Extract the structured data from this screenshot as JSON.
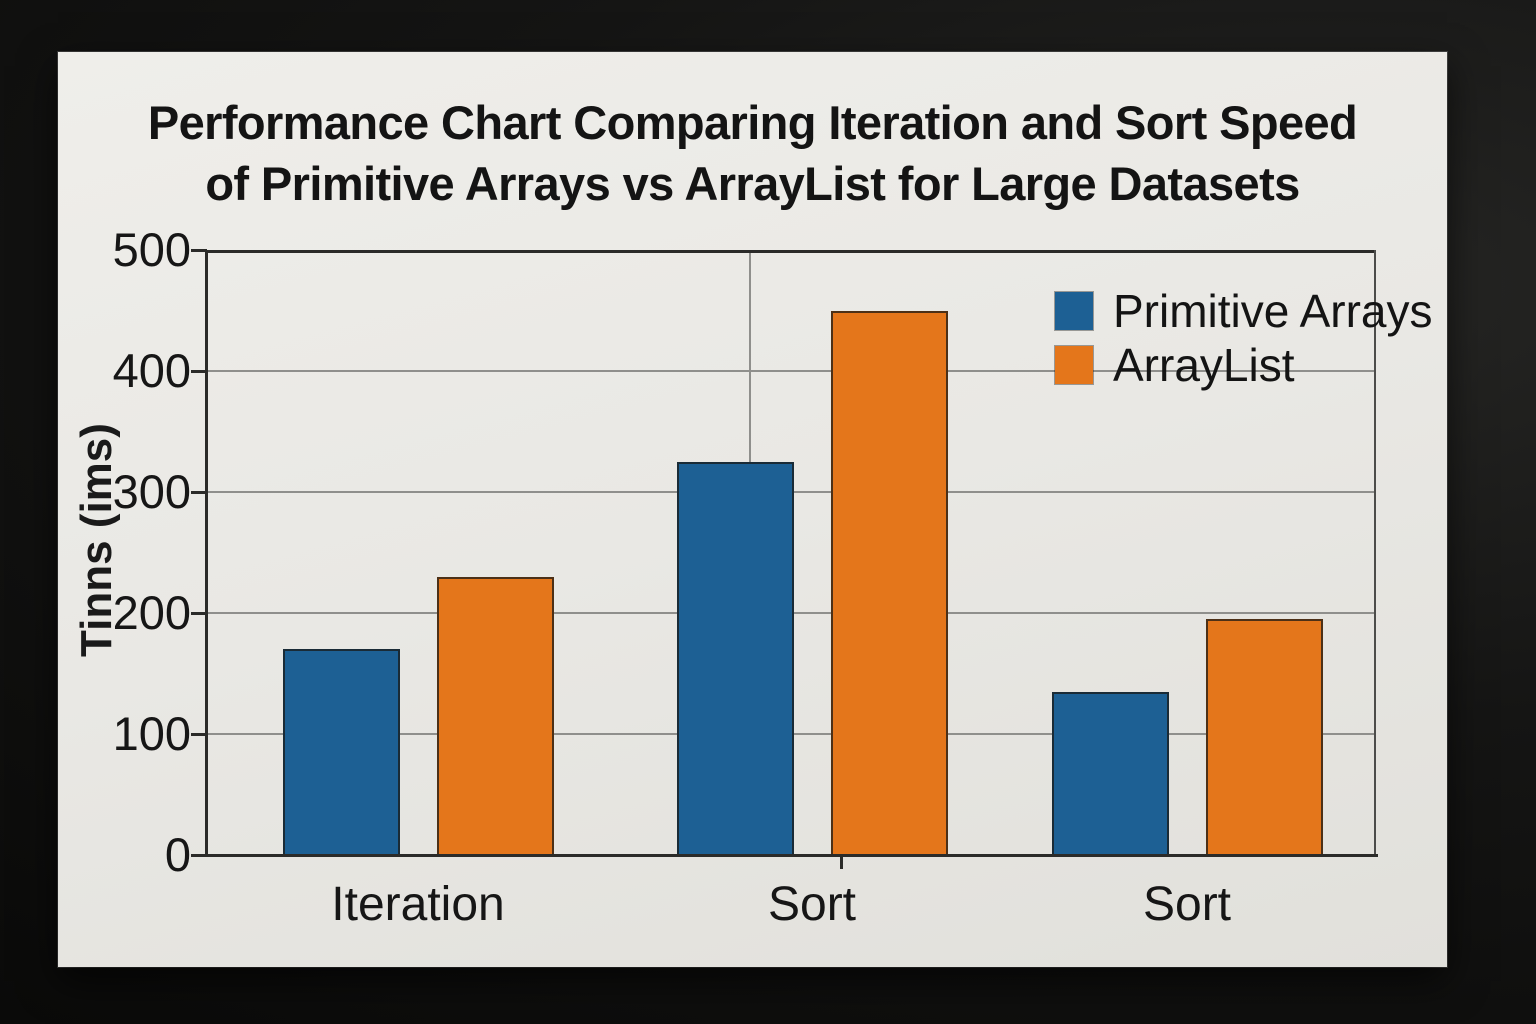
{
  "photo": {
    "background_color": "#101010",
    "card_color": "#e9e8e4"
  },
  "title": {
    "line1": "Performance Chart Comparing Iteration and Sort Speed",
    "line2": "of Primitive Arrays vs ArrayList for Large Datasets"
  },
  "chart_data": {
    "type": "bar",
    "title": "Performance Chart Comparing Iteration and Sort Speed of Primitive Arrays vs ArrayList for Large Datasets",
    "categories": [
      "Iteration",
      "Sort",
      "Sort"
    ],
    "series": [
      {
        "name": "Primitive Arrays",
        "color": "#1d6094",
        "values": [
          170,
          325,
          135
        ]
      },
      {
        "name": "ArrayList",
        "color": "#e4761b",
        "values": [
          230,
          450,
          195
        ]
      }
    ],
    "xlabel": "",
    "ylabel": "Tinns (ims)",
    "ylim": [
      0,
      500
    ],
    "yticks": [
      0,
      100,
      200,
      300,
      400,
      500
    ],
    "grid": true,
    "legend_position": "upper right",
    "axis_text_color": "#161616",
    "gridline_color": "#8f8f8c"
  }
}
